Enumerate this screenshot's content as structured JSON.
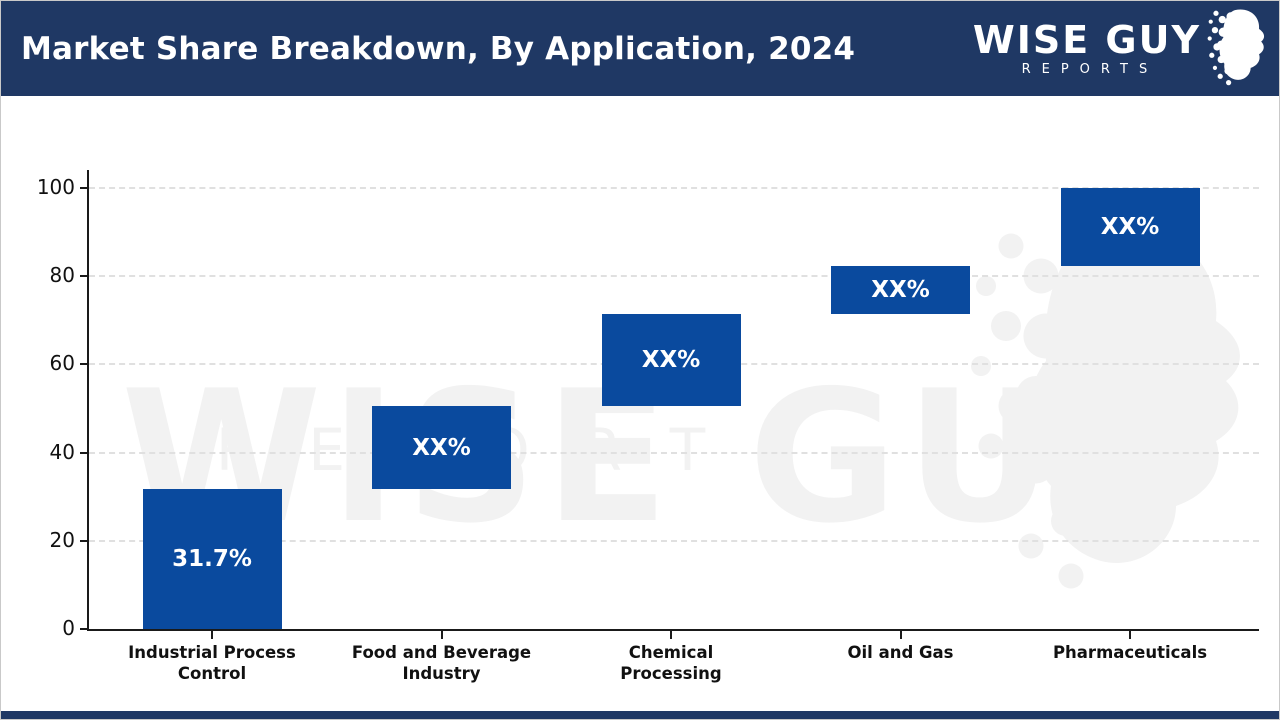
{
  "header": {
    "title": "Market Share Breakdown, By Application, 2024",
    "logo": {
      "wordmark": "WISE GUY",
      "subtext": "REPORTS"
    }
  },
  "watermark": {
    "wordmark": "WISE GUY",
    "subtext": "REPORTS"
  },
  "colors": {
    "header_bg": "#1f3864",
    "footer_bg": "#1f3864",
    "bar": "#0a4a9e",
    "grid": "#e0e0e0",
    "axis": "#1a1a1a",
    "watermark": "#f2f2f2",
    "bar_label": "#ffffff",
    "title_text": "#ffffff"
  },
  "chart_data": {
    "type": "bar",
    "subtype": "waterfall",
    "title": "Market Share Breakdown, By Application, 2024",
    "categories": [
      "Industrial Process\nControl",
      "Food and Beverage\nIndustry",
      "Chemical\nProcessing",
      "Oil and Gas",
      "Pharmaceuticals"
    ],
    "segments": [
      {
        "category": "Industrial Process Control",
        "start": 0,
        "end": 31.7,
        "value_label": "31.7%"
      },
      {
        "category": "Food and Beverage Industry",
        "start": 31.7,
        "end": 50.6,
        "value_label": "XX%"
      },
      {
        "category": "Chemical Processing",
        "start": 50.6,
        "end": 71.4,
        "value_label": "XX%"
      },
      {
        "category": "Oil and Gas",
        "start": 71.4,
        "end": 82.3,
        "value_label": "XX%"
      },
      {
        "category": "Pharmaceuticals",
        "start": 82.3,
        "end": 100,
        "value_label": "XX%"
      }
    ],
    "yticks": [
      0,
      20,
      40,
      60,
      80,
      100
    ],
    "ylim": [
      0,
      104
    ],
    "xlabel": "",
    "ylabel": "",
    "grid": "horizontal-dashed",
    "legend": "none"
  }
}
